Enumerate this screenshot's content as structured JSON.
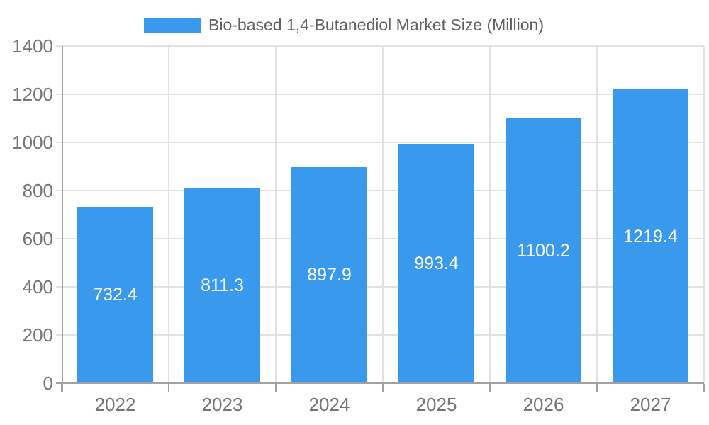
{
  "chart_data": {
    "type": "bar",
    "title": "Bio-based 1,4-Butanediol Market Size (Million)",
    "legend": [
      {
        "label": "Bio-based 1,4-Butanediol Market Size (Million)"
      }
    ],
    "legend_position": "top",
    "categories": [
      "2022",
      "2023",
      "2024",
      "2025",
      "2026",
      "2027"
    ],
    "series": [
      {
        "name": "Bio-based 1,4-Butanediol Market Size (Million)",
        "values": [
          732.4,
          811.3,
          897.9,
          993.4,
          1100.2,
          1219.4
        ]
      }
    ],
    "bar_labels": [
      "732.4",
      "811.3",
      "897.9",
      "993.4",
      "1100.2",
      "1219.4"
    ],
    "xlabel": "",
    "ylabel": "",
    "ylim": [
      0,
      1400
    ],
    "y_ticks": [
      0,
      200,
      400,
      600,
      800,
      1000,
      1200,
      1400
    ],
    "grid": true
  },
  "colors": {
    "bar": "#3999ed",
    "bar_label_text": "#ffffff",
    "axis_line": "#a2a2a2",
    "gridline": "#e2e2e2",
    "tick_text": "#757575",
    "legend_text": "#616161",
    "background": "#ffffff"
  }
}
